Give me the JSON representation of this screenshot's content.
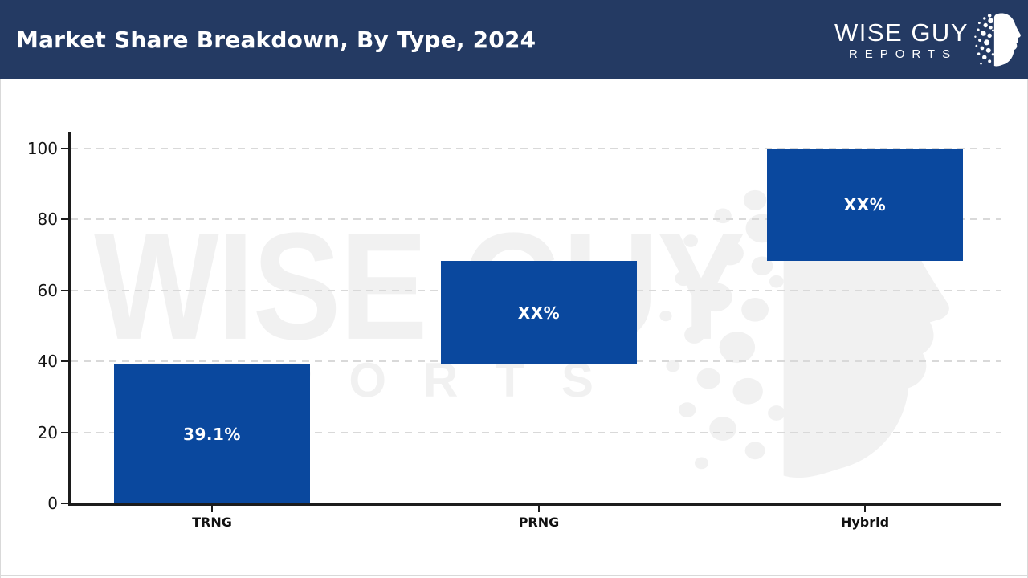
{
  "header": {
    "title": "Market Share Breakdown, By Type, 2024",
    "background_color": "#243a63"
  },
  "logo": {
    "name_line": "WISE GUY",
    "sub_line": "REPORTS",
    "head_icon": "dotted-head-profile",
    "color": "#ffffff"
  },
  "watermark": {
    "name_line": "WISE GUY",
    "sub_line": "REPORTS",
    "head_icon": "dotted-head-profile",
    "color": "#f1f1f1"
  },
  "chart_data": {
    "type": "bar",
    "subtype": "waterfall-cumulative",
    "title": "Market Share Breakdown, By Type, 2024",
    "categories": [
      "TRNG",
      "PRNG",
      "Hybrid"
    ],
    "segments": [
      {
        "category": "TRNG",
        "start": 0,
        "end": 39.1,
        "share": 39.1,
        "label": "39.1%"
      },
      {
        "category": "PRNG",
        "start": 39.1,
        "end": 68.3,
        "share": 29.2,
        "label": "XX%"
      },
      {
        "category": "Hybrid",
        "start": 68.3,
        "end": 100,
        "share": 31.7,
        "label": "XX%"
      }
    ],
    "yticks": [
      0,
      20,
      40,
      60,
      80,
      100
    ],
    "ylim": [
      0,
      105
    ],
    "xlabel": "",
    "ylabel": "",
    "legend": null,
    "bar_color": "#0a489e",
    "bar_label_color": "#ffffff",
    "grid": {
      "axis": "y",
      "style": "dashed",
      "color": "#d9d9d9"
    }
  }
}
